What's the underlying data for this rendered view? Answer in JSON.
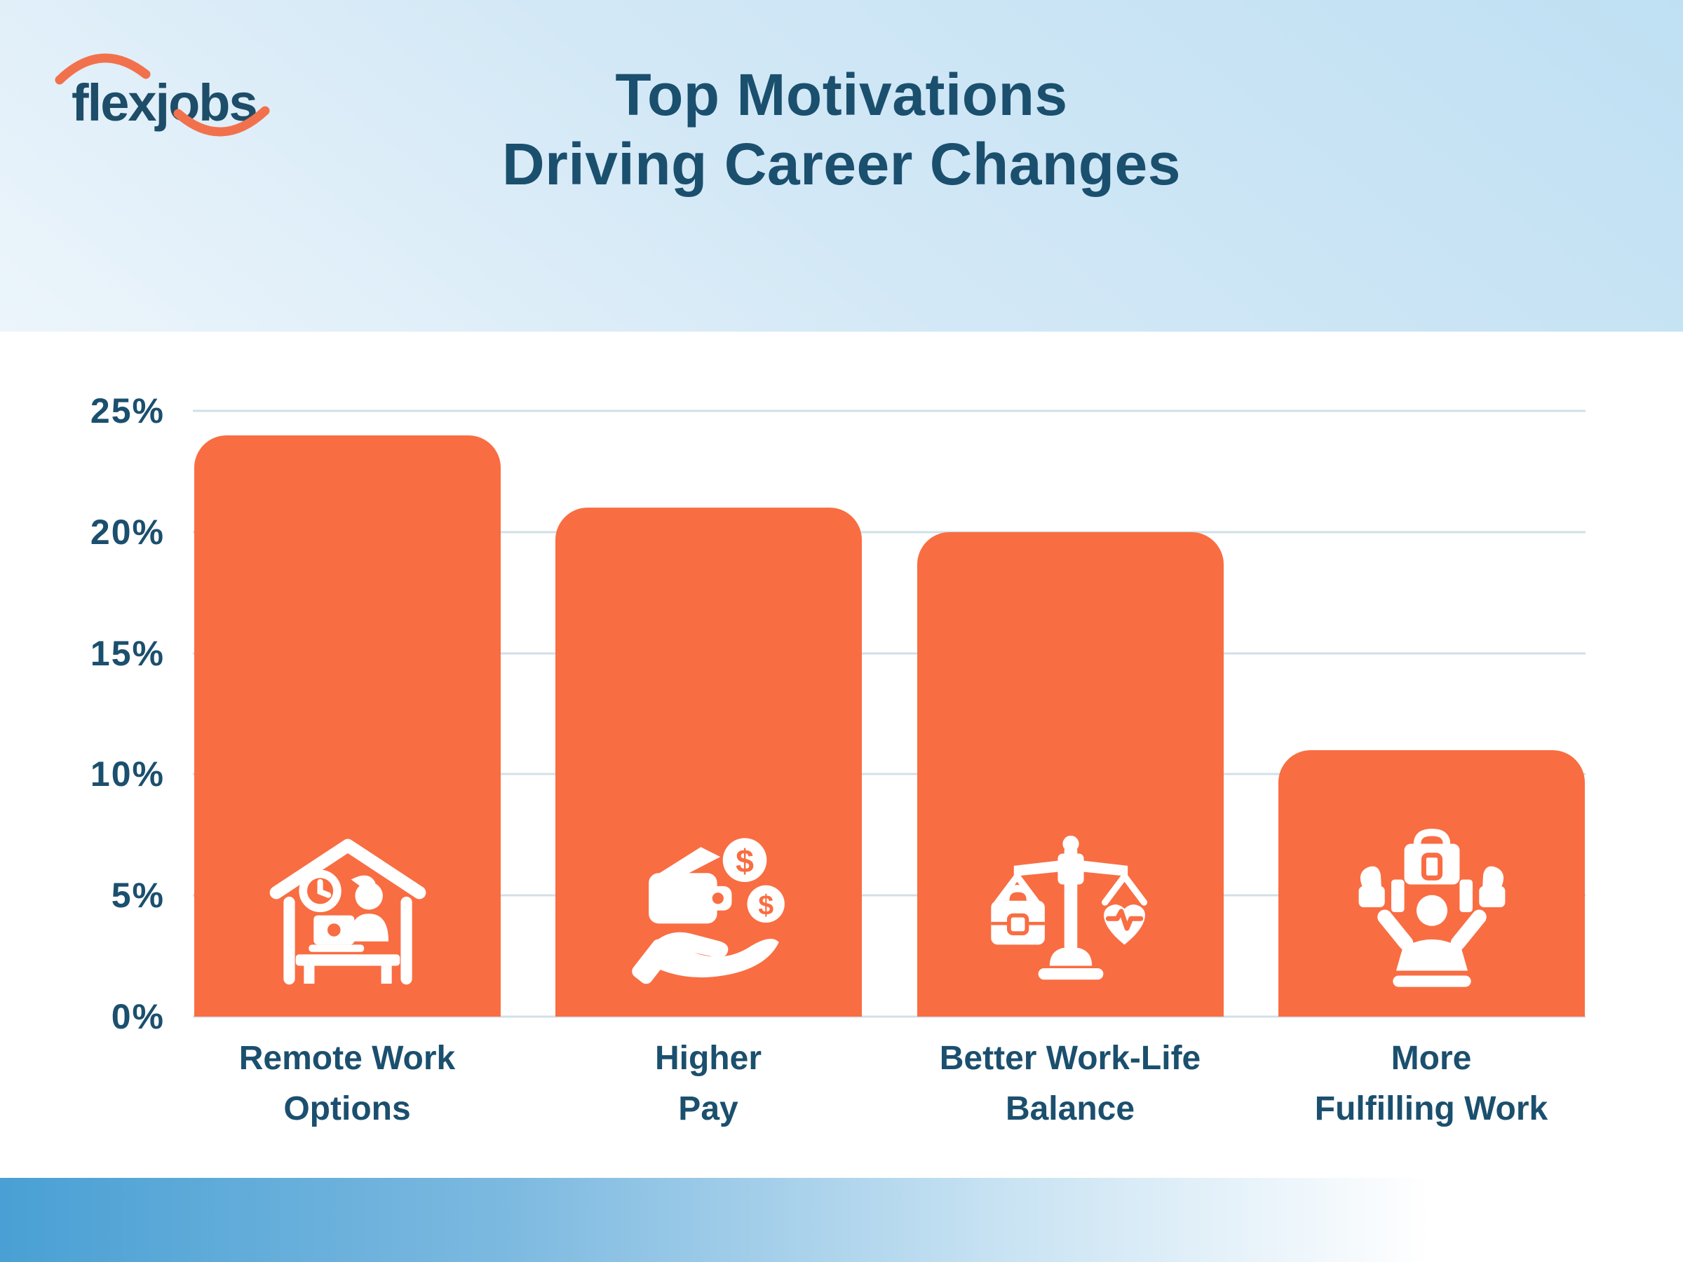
{
  "brand": {
    "logo_text": "flexjobs",
    "logo_color": "#1D4D68",
    "arc_color": "#F2714D"
  },
  "title": {
    "line1": "Top Motivations",
    "line2": "Driving Career Changes"
  },
  "chart_data": {
    "type": "bar",
    "title": "Top Motivations Driving Career Changes",
    "categories": [
      "Remote Work Options",
      "Higher Pay",
      "Better Work-Life Balance",
      "More Fulfilling Work"
    ],
    "category_lines": [
      [
        "Remote Work",
        "Options"
      ],
      [
        "Higher",
        "Pay"
      ],
      [
        "Better Work-Life",
        "Balance"
      ],
      [
        "More",
        "Fulfilling Work"
      ]
    ],
    "values": [
      24,
      21,
      20,
      11
    ],
    "unit": "%",
    "ylim": [
      0,
      25
    ],
    "y_tick_labels": [
      "25%",
      "20%",
      "15%",
      "10%",
      "5%",
      "0%"
    ],
    "y_tick_values": [
      25,
      20,
      15,
      10,
      5,
      0
    ],
    "grid": true,
    "legend": "none",
    "bar_color": "#F96D42",
    "icons": [
      "remote-work-icon",
      "higher-pay-icon",
      "work-life-balance-icon",
      "fulfilling-work-icon"
    ]
  },
  "colors": {
    "accent_orange": "#F96D42",
    "teal_text": "#1B4F6E",
    "gridline": "#d3dfe7",
    "header_blue": "#bfe0f3",
    "footer_blue": "#49a0d4"
  }
}
